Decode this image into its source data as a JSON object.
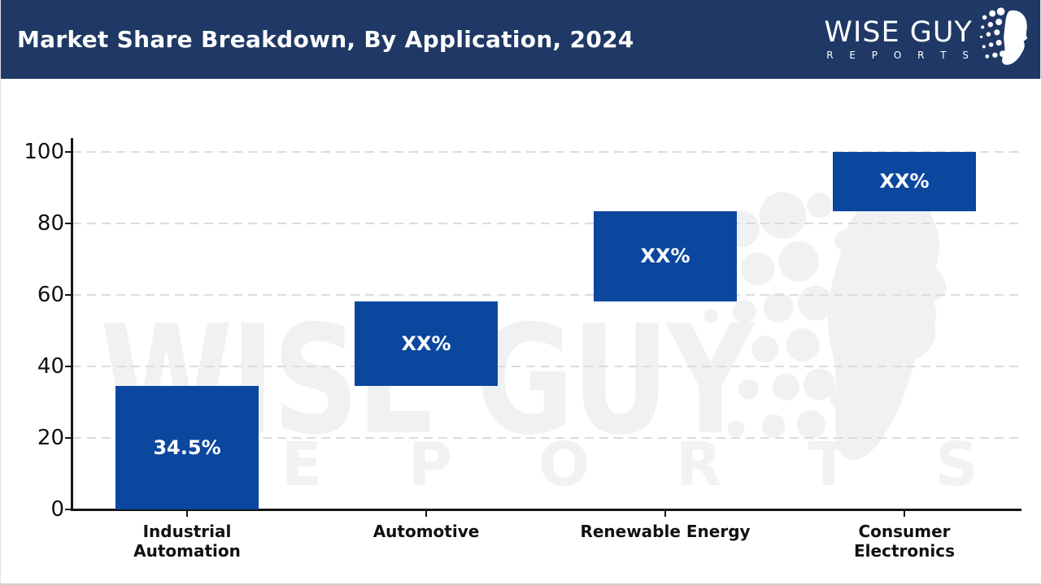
{
  "header": {
    "title": "Market Share Breakdown, By Application, 2024",
    "logo": {
      "name": "WISE GUY",
      "sub": "R E P O R T S"
    }
  },
  "watermark": {
    "line1": "WISE GUY",
    "line2": "R E P O R T S"
  },
  "chart_data": {
    "type": "bar",
    "subtype": "waterfall",
    "title": "Market Share Breakdown, By Application, 2024",
    "categories": [
      "Industrial Automation",
      "Automotive",
      "Renewable Energy",
      "Consumer Electronics"
    ],
    "series": [
      {
        "name": "Market Share",
        "segments": [
          [
            0,
            34.5
          ],
          [
            34.5,
            58.2
          ],
          [
            58.2,
            83.5
          ],
          [
            83.5,
            100
          ]
        ]
      }
    ],
    "bar_labels": [
      "34.5%",
      "XX%",
      "XX%",
      "XX%"
    ],
    "yticks": [
      0,
      20,
      40,
      60,
      80,
      100
    ],
    "ylim": [
      0,
      103.8
    ],
    "xlabel": "",
    "ylabel": "",
    "grid": "horizontal-dashed",
    "legend": "none"
  },
  "colors": {
    "header_bg": "#1f3865",
    "bar": "#0b479e",
    "bar_label": "#ffffff",
    "grid": "#dcdcdc",
    "axis": "#161616",
    "watermark": "#f0f1f3"
  }
}
